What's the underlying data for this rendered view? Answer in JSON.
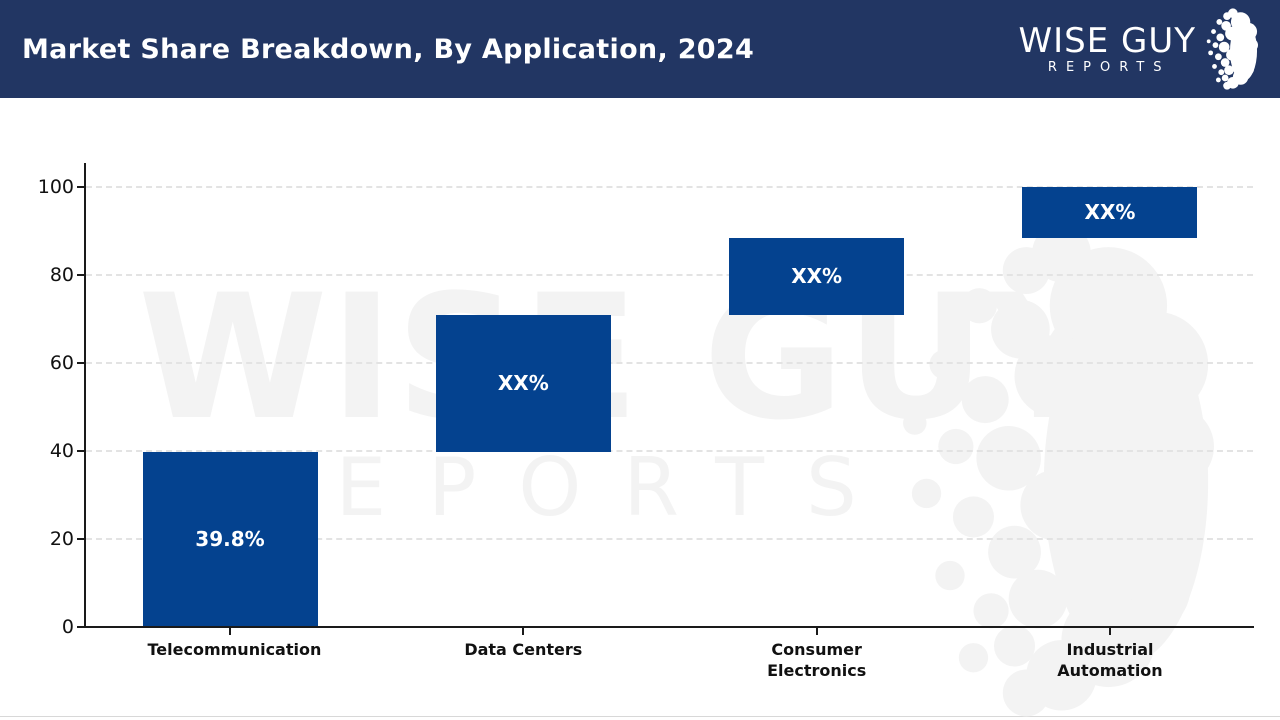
{
  "header": {
    "title": "Market Share Breakdown, By Application, 2024",
    "logo": {
      "line1": "WISE GUY",
      "line2": "REPORTS",
      "head_icon": "dotted-head-profile"
    }
  },
  "watermark": {
    "line1": "WISE GUY",
    "line2": "REPORTS",
    "head_icon": "dotted-head-profile"
  },
  "colors": {
    "header_bg": "#223663",
    "bar": "#04428f",
    "bar_label": "#ffffff",
    "watermark": "#f3f3f3",
    "axis": "#1a1a1a",
    "grid": "#e3e3e3"
  },
  "chart_data": {
    "type": "bar",
    "subtype": "waterfall",
    "title": "Market Share Breakdown, By Application, 2024",
    "xlabel": "",
    "ylabel": "",
    "categories": [
      "Telecommunication",
      "Data Centers",
      "Consumer Electronics",
      "Industrial Automation"
    ],
    "segments": [
      {
        "category": "Telecommunication",
        "start": 0,
        "end": 39.8,
        "label": "39.8%"
      },
      {
        "category": "Data Centers",
        "start": 39.8,
        "end": 71,
        "label": "XX%"
      },
      {
        "category": "Consumer Electronics",
        "start": 71,
        "end": 88.5,
        "label": "XX%"
      },
      {
        "category": "Industrial Automation",
        "start": 88.5,
        "end": 100,
        "label": "XX%"
      }
    ],
    "y_ticks": [
      0,
      20,
      40,
      60,
      80,
      100
    ],
    "ylim": [
      0,
      105
    ],
    "grid": true,
    "grid_style": "dashed",
    "legend": "none"
  }
}
